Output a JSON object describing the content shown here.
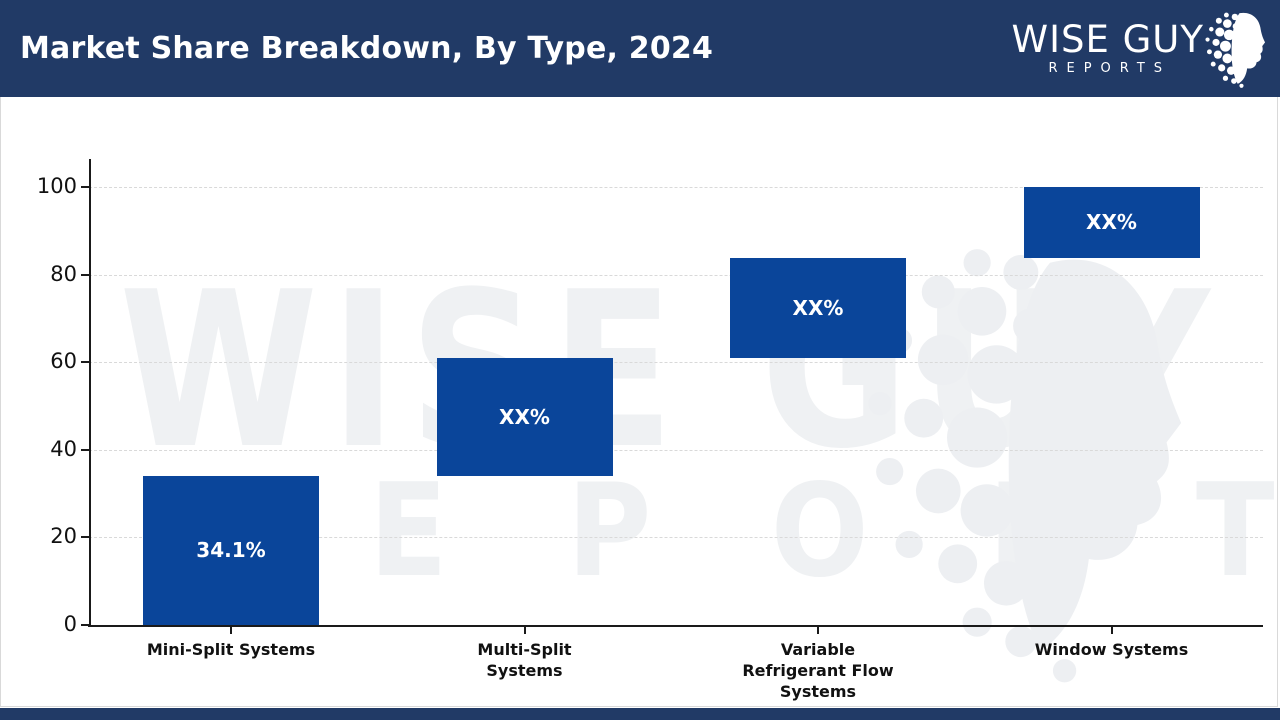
{
  "header": {
    "title": "Market Share Breakdown, By Type, 2024",
    "bg_color": "#213a66",
    "logo": {
      "line1": "WISE GUY",
      "line2": "REPORTS"
    }
  },
  "watermark": {
    "line1": "WISE GUY",
    "line2": "R E P O R T S"
  },
  "footer": {
    "bg_color": "#213a66"
  },
  "chart_data": {
    "type": "bar",
    "subtype": "floating-waterfall",
    "title": "Market Share Breakdown, By Type, 2024",
    "categories": [
      "Mini-Split Systems",
      "Multi-Split Systems",
      "Variable Refrigerant Flow Systems",
      "Window Systems"
    ],
    "category_label_lines": [
      [
        "Mini-Split Systems"
      ],
      [
        "Multi-Split",
        "Systems"
      ],
      [
        "Variable",
        "Refrigerant Flow",
        "Systems"
      ],
      [
        "Window Systems"
      ]
    ],
    "series": [
      {
        "name": "Market Share (%)",
        "ranges": [
          [
            0,
            34.1
          ],
          [
            34.1,
            61.0
          ],
          [
            61.0,
            83.8
          ],
          [
            83.8,
            100
          ]
        ]
      }
    ],
    "bar_labels": [
      "34.1%",
      "XX%",
      "XX%",
      "XX%"
    ],
    "ylim": [
      0,
      100
    ],
    "yticks": [
      0,
      20,
      40,
      60,
      80,
      100
    ],
    "xlabel": "",
    "ylabel": "",
    "grid": "horizontal-dashed",
    "legend": "none",
    "bar_color": "#0a459a",
    "bar_label_color": "#ffffff",
    "axis_color": "#1a1a1a",
    "gridline_color": "#d9d9d9"
  }
}
